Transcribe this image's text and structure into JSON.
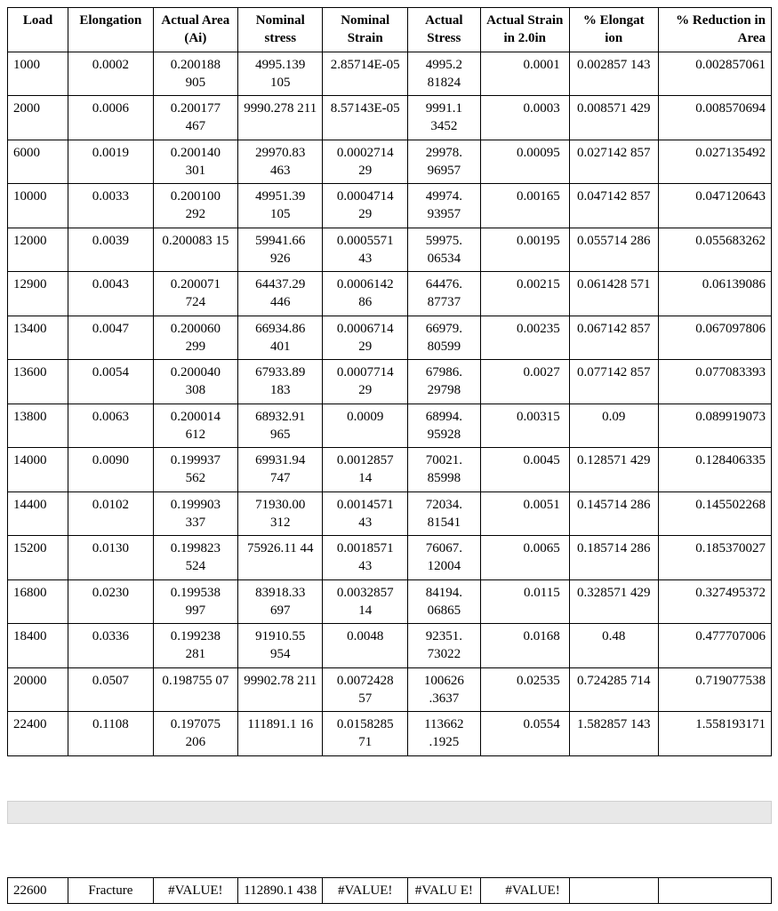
{
  "table": {
    "columns": [
      "Load",
      "Elongation",
      "Actual Area (Ai)",
      "Nominal stress",
      "Nominal Strain",
      "Actual Stress",
      "Actual Strain in 2.0in",
      "% Elongat ion",
      "% Reduction in Area"
    ],
    "rows": [
      [
        "1000",
        "0.0002",
        "0.200188 905",
        "4995.139 105",
        "2.85714E-05",
        "4995.2 81824",
        "0.0001",
        "0.002857 143",
        "0.002857061"
      ],
      [
        "2000",
        "0.0006",
        "0.200177 467",
        "9990.278 211",
        "8.57143E-05",
        "9991.1 3452",
        "0.0003",
        "0.008571 429",
        "0.008570694"
      ],
      [
        "6000",
        "0.0019",
        "0.200140 301",
        "29970.83 463",
        "0.0002714 29",
        "29978. 96957",
        "0.00095",
        "0.027142 857",
        "0.027135492"
      ],
      [
        "10000",
        "0.0033",
        "0.200100 292",
        "49951.39 105",
        "0.0004714 29",
        "49974. 93957",
        "0.00165",
        "0.047142 857",
        "0.047120643"
      ],
      [
        "12000",
        "0.0039",
        "0.200083 15",
        "59941.66 926",
        "0.0005571 43",
        "59975. 06534",
        "0.00195",
        "0.055714 286",
        "0.055683262"
      ],
      [
        "12900",
        "0.0043",
        "0.200071 724",
        "64437.29 446",
        "0.0006142 86",
        "64476. 87737",
        "0.00215",
        "0.061428 571",
        "0.06139086"
      ],
      [
        "13400",
        "0.0047",
        "0.200060 299",
        "66934.86 401",
        "0.0006714 29",
        "66979. 80599",
        "0.00235",
        "0.067142 857",
        "0.067097806"
      ],
      [
        "13600",
        "0.0054",
        "0.200040 308",
        "67933.89 183",
        "0.0007714 29",
        "67986. 29798",
        "0.0027",
        "0.077142 857",
        "0.077083393"
      ],
      [
        "13800",
        "0.0063",
        "0.200014 612",
        "68932.91 965",
        "0.0009",
        "68994. 95928",
        "0.00315",
        "0.09",
        "0.089919073"
      ],
      [
        "14000",
        "0.0090",
        "0.199937 562",
        "69931.94 747",
        "0.0012857 14",
        "70021. 85998",
        "0.0045",
        "0.128571 429",
        "0.128406335"
      ],
      [
        "14400",
        "0.0102",
        "0.199903 337",
        "71930.00 312",
        "0.0014571 43",
        "72034. 81541",
        "0.0051",
        "0.145714 286",
        "0.145502268"
      ],
      [
        "15200",
        "0.0130",
        "0.199823 524",
        "75926.11 44",
        "0.0018571 43",
        "76067. 12004",
        "0.0065",
        "0.185714 286",
        "0.185370027"
      ],
      [
        "16800",
        "0.0230",
        "0.199538 997",
        "83918.33 697",
        "0.0032857 14",
        "84194. 06865",
        "0.0115",
        "0.328571 429",
        "0.327495372"
      ],
      [
        "18400",
        "0.0336",
        "0.199238 281",
        "91910.55 954",
        "0.0048",
        "92351. 73022",
        "0.0168",
        "0.48",
        "0.477707006"
      ],
      [
        "20000",
        "0.0507",
        "0.198755 07",
        "99902.78 211",
        "0.0072428 57",
        "100626 .3637",
        "0.02535",
        "0.724285 714",
        "0.719077538"
      ],
      [
        "22400",
        "0.1108",
        "0.197075 206",
        "111891.1 16",
        "0.0158285 71",
        "113662 .1925",
        "0.0554",
        "1.582857 143",
        "1.558193171"
      ]
    ],
    "second_section_row": [
      "22600",
      "Fracture",
      "#VALUE!",
      "112890.1 438",
      "#VALUE!",
      "#VALU E!",
      "#VALUE!",
      "",
      ""
    ],
    "border_color": "#000000",
    "background_color": "#ffffff",
    "font_family": "Times New Roman",
    "header_fontsize": 15,
    "cell_fontsize": 15,
    "separator_bar_color": "#e8e8e8"
  }
}
